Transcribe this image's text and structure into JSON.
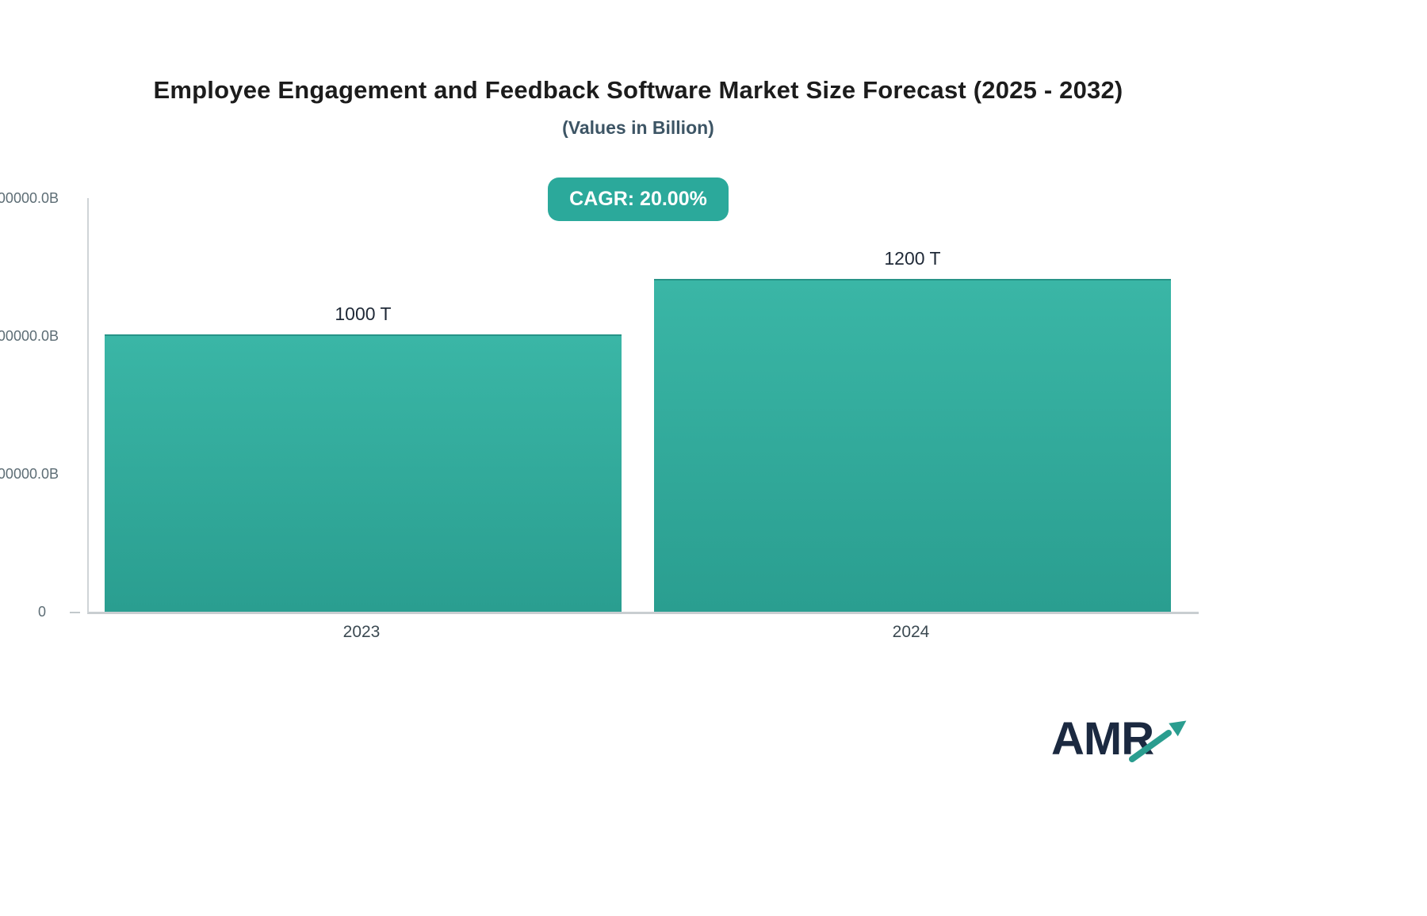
{
  "chart_data": {
    "type": "bar",
    "title": "Employee Engagement and Feedback Software Market Size Forecast (2025 - 2032)",
    "subtitle": "(Values in Billion)",
    "cagr_badge": "CAGR: 20.00%",
    "categories": [
      "2023",
      "2024"
    ],
    "values": [
      1000,
      1200
    ],
    "value_labels": [
      "1000 T",
      "1200 T"
    ],
    "xlabel": "",
    "ylabel": "",
    "ylim": [
      0,
      1500
    ],
    "ytick_labels_bottom_to_top": [
      "0",
      "00000.0B",
      "00000.0B",
      "00000.0B"
    ],
    "grid": false,
    "legend": false,
    "bar_color_top": "#3ab6a6",
    "bar_color_bottom": "#2a9e90",
    "accent_color": "#2ba99b"
  },
  "branding": {
    "logo_text": "AMR",
    "logo_color": "#1b2940",
    "arrow_color": "#2a9d8f"
  }
}
